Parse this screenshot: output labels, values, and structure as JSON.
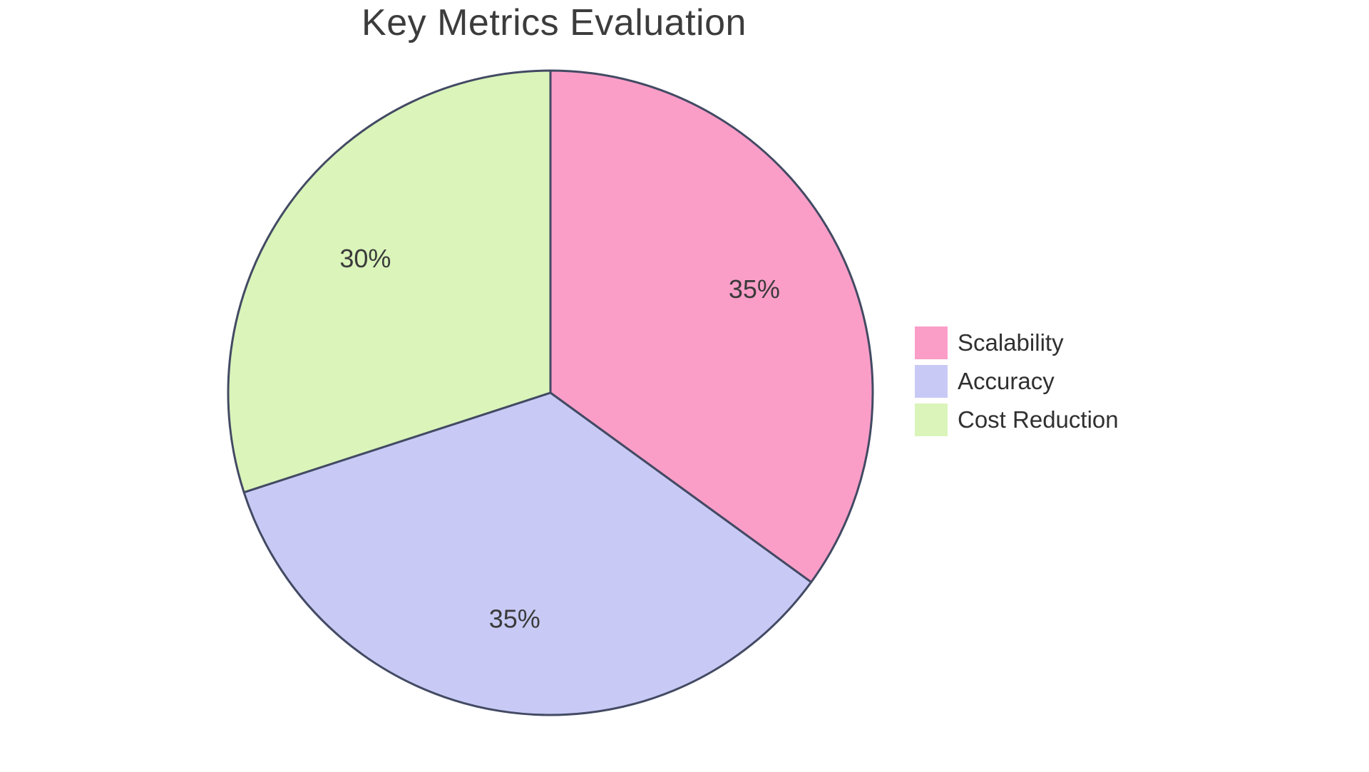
{
  "chart_data": {
    "type": "pie",
    "title": "Key Metrics Evaluation",
    "series": [
      {
        "label": "Scalability",
        "value": 35,
        "pct_label": "35%",
        "color": "#FA9EC8"
      },
      {
        "label": "Accuracy",
        "value": 35,
        "pct_label": "35%",
        "color": "#C8CAF5"
      },
      {
        "label": "Cost Reduction",
        "value": 30,
        "pct_label": "30%",
        "color": "#DAF4BA"
      }
    ],
    "start_angle": "12-oclock",
    "direction": "clockwise",
    "stroke_color": "#434A63",
    "stroke_width": 3,
    "slice_label_color": "#3A3A3A",
    "title_color": "#3C3C3C",
    "legend_position": "right",
    "legend_text_color": "#303030",
    "background_color": "#FFFFFF"
  }
}
